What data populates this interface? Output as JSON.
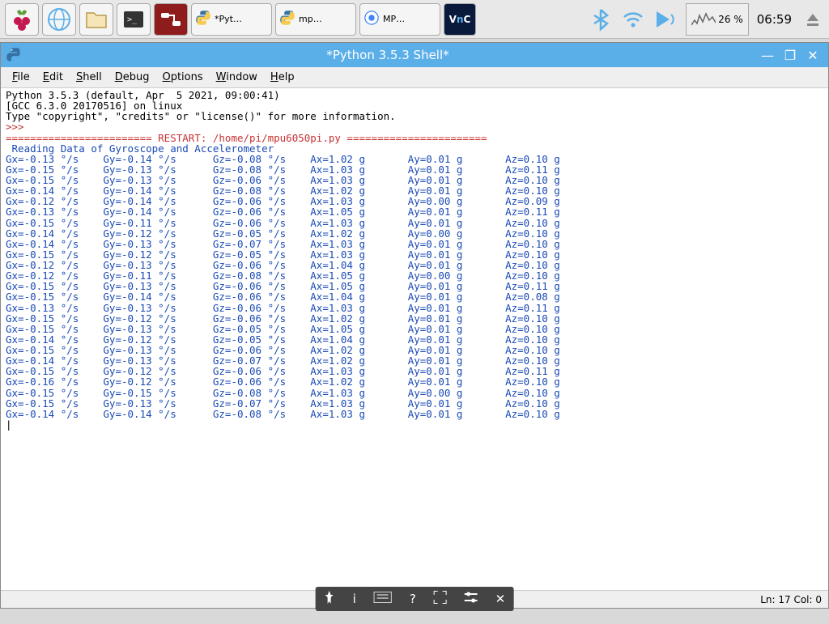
{
  "taskbar": {
    "apps": [
      {
        "label": "*Pyt…",
        "icon": "python"
      },
      {
        "label": "mp…",
        "icon": "python"
      },
      {
        "label": "MP…",
        "icon": "chromium"
      }
    ],
    "cpu": "26 %",
    "clock": "06:59"
  },
  "window": {
    "title": "*Python 3.5.3 Shell*",
    "menus": [
      "File",
      "Edit",
      "Shell",
      "Debug",
      "Options",
      "Window",
      "Help"
    ],
    "status": "Ln: 17  Col: 0"
  },
  "shell": {
    "header": [
      "Python 3.5.3 (default, Apr  5 2021, 09:00:41)",
      "[GCC 6.3.0 20170516] on linux",
      "Type \"copyright\", \"credits\" or \"license()\" for more information."
    ],
    "prompt": ">>> ",
    "restart": "======================== RESTART: /home/pi/mpu6050pi.py =======================",
    "banner": " Reading Data of Gyroscope and Accelerometer",
    "rows": [
      {
        "gx": "-0.13",
        "gy": "-0.14",
        "gz": "-0.08",
        "ax": "1.02",
        "ay": "0.01",
        "az": "0.10"
      },
      {
        "gx": "-0.15",
        "gy": "-0.13",
        "gz": "-0.08",
        "ax": "1.03",
        "ay": "0.01",
        "az": "0.11"
      },
      {
        "gx": "-0.15",
        "gy": "-0.13",
        "gz": "-0.06",
        "ax": "1.03",
        "ay": "0.01",
        "az": "0.10"
      },
      {
        "gx": "-0.14",
        "gy": "-0.14",
        "gz": "-0.08",
        "ax": "1.02",
        "ay": "0.01",
        "az": "0.10"
      },
      {
        "gx": "-0.12",
        "gy": "-0.14",
        "gz": "-0.06",
        "ax": "1.03",
        "ay": "0.00",
        "az": "0.09"
      },
      {
        "gx": "-0.13",
        "gy": "-0.14",
        "gz": "-0.06",
        "ax": "1.05",
        "ay": "0.01",
        "az": "0.11"
      },
      {
        "gx": "-0.15",
        "gy": "-0.11",
        "gz": "-0.06",
        "ax": "1.03",
        "ay": "0.01",
        "az": "0.10"
      },
      {
        "gx": "-0.14",
        "gy": "-0.12",
        "gz": "-0.05",
        "ax": "1.02",
        "ay": "0.00",
        "az": "0.10"
      },
      {
        "gx": "-0.14",
        "gy": "-0.13",
        "gz": "-0.07",
        "ax": "1.03",
        "ay": "0.01",
        "az": "0.10"
      },
      {
        "gx": "-0.15",
        "gy": "-0.12",
        "gz": "-0.05",
        "ax": "1.03",
        "ay": "0.01",
        "az": "0.10"
      },
      {
        "gx": "-0.12",
        "gy": "-0.13",
        "gz": "-0.06",
        "ax": "1.04",
        "ay": "0.01",
        "az": "0.10"
      },
      {
        "gx": "-0.12",
        "gy": "-0.11",
        "gz": "-0.08",
        "ax": "1.05",
        "ay": "0.00",
        "az": "0.10"
      },
      {
        "gx": "-0.15",
        "gy": "-0.13",
        "gz": "-0.06",
        "ax": "1.05",
        "ay": "0.01",
        "az": "0.11"
      },
      {
        "gx": "-0.15",
        "gy": "-0.14",
        "gz": "-0.06",
        "ax": "1.04",
        "ay": "0.01",
        "az": "0.08"
      },
      {
        "gx": "-0.13",
        "gy": "-0.13",
        "gz": "-0.06",
        "ax": "1.03",
        "ay": "0.01",
        "az": "0.11"
      },
      {
        "gx": "-0.15",
        "gy": "-0.12",
        "gz": "-0.06",
        "ax": "1.02",
        "ay": "0.01",
        "az": "0.10"
      },
      {
        "gx": "-0.15",
        "gy": "-0.13",
        "gz": "-0.05",
        "ax": "1.05",
        "ay": "0.01",
        "az": "0.10"
      },
      {
        "gx": "-0.14",
        "gy": "-0.12",
        "gz": "-0.05",
        "ax": "1.04",
        "ay": "0.01",
        "az": "0.10"
      },
      {
        "gx": "-0.15",
        "gy": "-0.13",
        "gz": "-0.06",
        "ax": "1.02",
        "ay": "0.01",
        "az": "0.10"
      },
      {
        "gx": "-0.14",
        "gy": "-0.13",
        "gz": "-0.07",
        "ax": "1.02",
        "ay": "0.01",
        "az": "0.10"
      },
      {
        "gx": "-0.15",
        "gy": "-0.12",
        "gz": "-0.06",
        "ax": "1.03",
        "ay": "0.01",
        "az": "0.11"
      },
      {
        "gx": "-0.16",
        "gy": "-0.12",
        "gz": "-0.06",
        "ax": "1.02",
        "ay": "0.01",
        "az": "0.10"
      },
      {
        "gx": "-0.15",
        "gy": "-0.15",
        "gz": "-0.08",
        "ax": "1.03",
        "ay": "0.00",
        "az": "0.10"
      },
      {
        "gx": "-0.15",
        "gy": "-0.13",
        "gz": "-0.07",
        "ax": "1.03",
        "ay": "0.01",
        "az": "0.10"
      },
      {
        "gx": "-0.14",
        "gy": "-0.14",
        "gz": "-0.08",
        "ax": "1.03",
        "ay": "0.01",
        "az": "0.10"
      }
    ]
  },
  "colors": {
    "blue": "#1a4ab5",
    "red": "#c73232",
    "titlebar": "#5bafe8"
  }
}
